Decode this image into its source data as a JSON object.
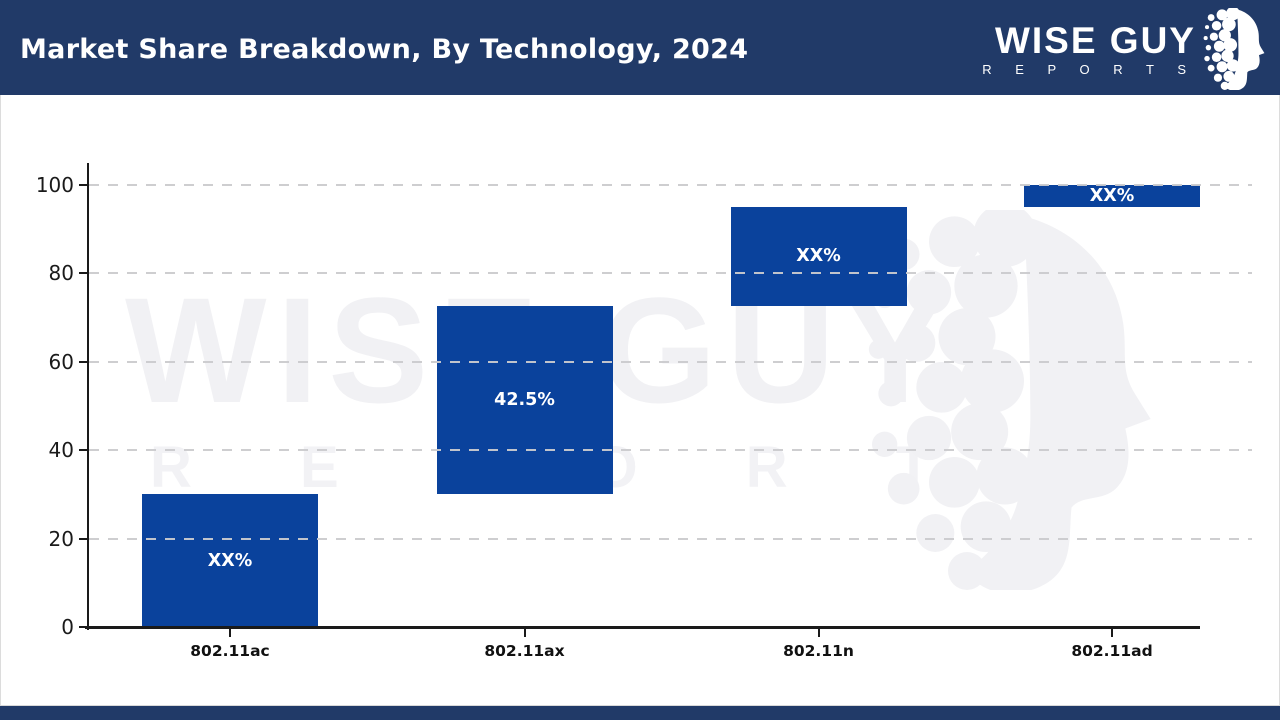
{
  "header": {
    "title": "Market Share Breakdown, By Technology, 2024",
    "logo": {
      "primary": "WISE GUY",
      "secondary": "R E P O R T S"
    }
  },
  "watermark": {
    "primary": "WISE GUY",
    "secondary": "R E P O R T S"
  },
  "chart_data": {
    "type": "bar",
    "subtype": "waterfall",
    "title": "Market Share Breakdown, By Technology, 2024",
    "xlabel": "",
    "ylabel": "",
    "categories": [
      "802.11ac",
      "802.11ax",
      "802.11n",
      "802.11ad"
    ],
    "segments": [
      {
        "category": "802.11ac",
        "start": 0,
        "end": 30,
        "label": "XX%"
      },
      {
        "category": "802.11ax",
        "start": 30,
        "end": 72.5,
        "label": "42.5%"
      },
      {
        "category": "802.11n",
        "start": 72.5,
        "end": 95,
        "label": "XX%"
      },
      {
        "category": "802.11ad",
        "start": 95,
        "end": 100,
        "label": "XX%"
      }
    ],
    "y_ticks": [
      0,
      20,
      40,
      60,
      80,
      100
    ],
    "ylim": [
      0,
      105
    ],
    "grid": "horizontal-dashed",
    "legend": "none"
  },
  "colors": {
    "navy": "#213a68",
    "bar_blue": "#0a429c",
    "gridline": "#d4d4d6",
    "watermark_gray": "#f1f1f4",
    "axis_black": "#1a1a1a"
  }
}
